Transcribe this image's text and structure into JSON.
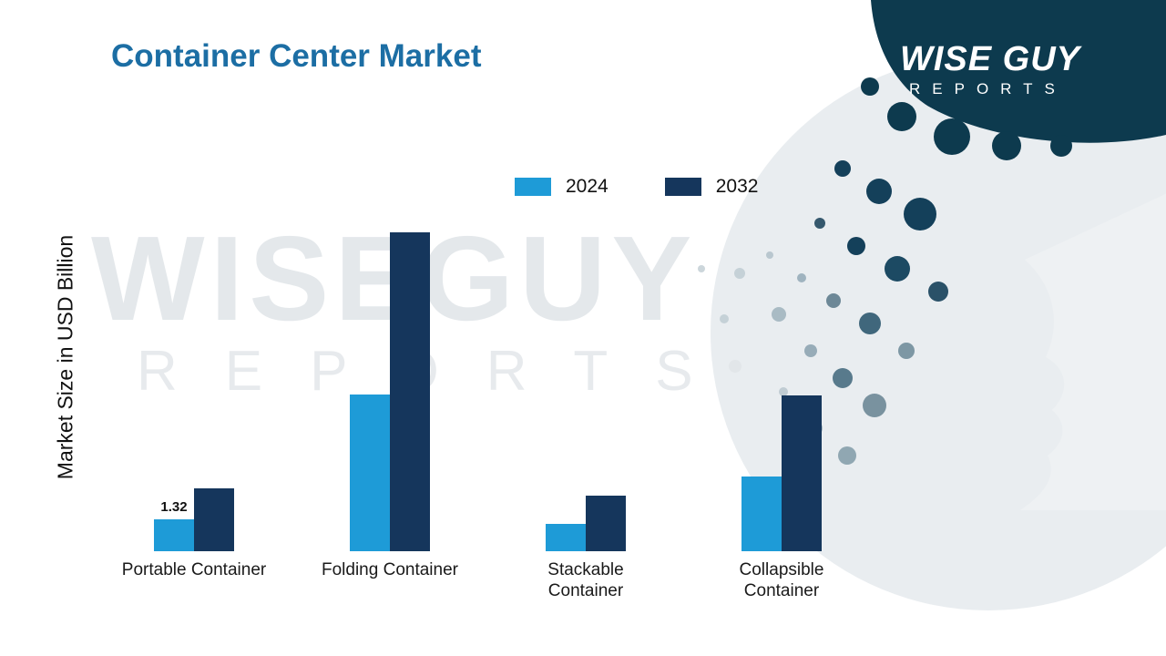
{
  "page": {
    "title": "Container Center Market"
  },
  "logo": {
    "name": "WISE GUY",
    "sub": "REPORTS"
  },
  "watermark": {
    "line1": "WISEGUY",
    "line2": "REPORTS"
  },
  "y_axis": {
    "label": "Market Size in USD Billion"
  },
  "chart_data": {
    "type": "bar",
    "title": "Container Center Market",
    "ylabel": "Market Size in USD Billion",
    "ylim": [
      0,
      14
    ],
    "grid": false,
    "legend_position": "top",
    "categories": [
      "Portable Container",
      "Folding Container",
      "Stackable Container",
      "Collapsible Container"
    ],
    "series": [
      {
        "name": "2024",
        "color": "#1E9BD7",
        "values": [
          1.32,
          6.5,
          1.15,
          3.1
        ]
      },
      {
        "name": "2032",
        "color": "#15365C",
        "values": [
          2.6,
          13.2,
          2.3,
          6.45
        ]
      }
    ],
    "annotations": [
      {
        "series_index": 0,
        "category_index": 0,
        "text": "1.32"
      }
    ]
  },
  "colors": {
    "title": "#1c6ea4",
    "corner_block": "#0d3a4e",
    "face_fill": "#e9edf0",
    "watermark": "#e4e8eb"
  }
}
